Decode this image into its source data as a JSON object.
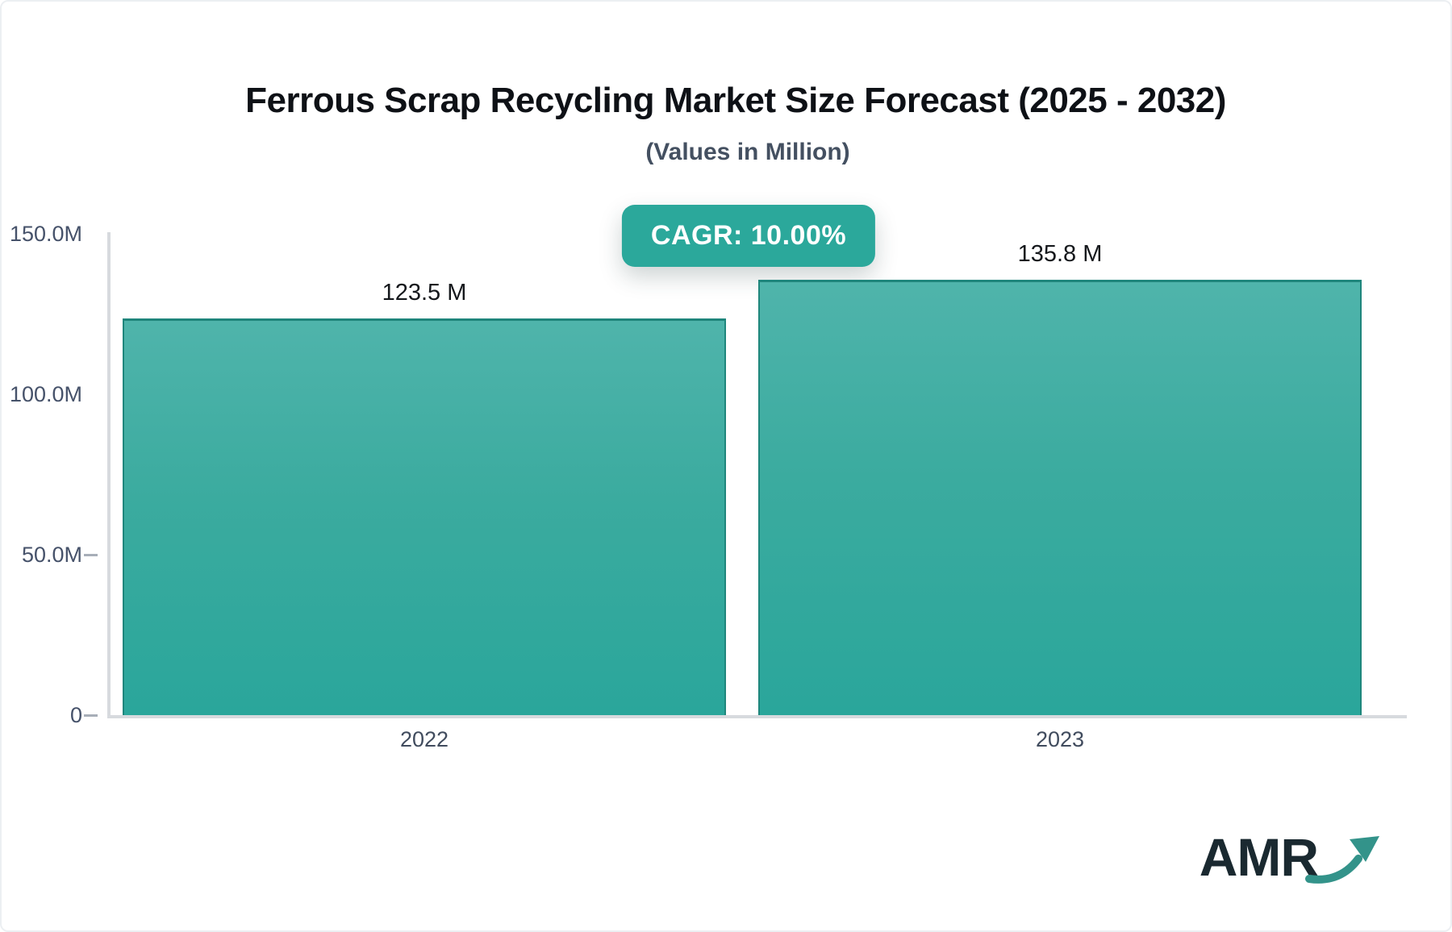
{
  "header": {
    "title": "Ferrous Scrap Recycling Market Size Forecast (2025 - 2032)",
    "subtitle": "(Values in Million)",
    "cagr_badge": "CAGR: 10.00%"
  },
  "logo": {
    "text": "AMR",
    "icon": "trend-arrow-icon"
  },
  "colors": {
    "accent_teal": "#2BA89B",
    "bar_gradient_top": "#4FB4AB",
    "bar_gradient_bottom": "#2AA69B",
    "bar_border": "#1F867C",
    "axis_line": "#D7DADE",
    "tick_mark": "#A7AEB8",
    "y_label_text": "#46526A",
    "x_label_text": "#414C5E",
    "value_label_text": "#15181C",
    "title_text": "#0E1116",
    "subtitle_text": "#445061",
    "badge_text": "#FFFFFF",
    "logo_text": "#1A2930",
    "logo_arrow": "#33938A"
  },
  "chart_data": {
    "type": "bar",
    "title": "Ferrous Scrap Recycling Market Size Forecast (2025 - 2032)",
    "subtitle": "(Values in Million)",
    "unit": "Million",
    "cagr_percent": "10.00%",
    "categories": [
      "2022",
      "2023"
    ],
    "values": [
      123.5,
      135.8
    ],
    "value_labels": [
      "123.5 M",
      "135.8 M"
    ],
    "xlabel": "",
    "ylabel": "",
    "ylim": [
      0,
      150
    ],
    "grid": false,
    "legend": "none",
    "yticks": [
      {
        "value": 150,
        "label": "150.0M",
        "tick": false
      },
      {
        "value": 100,
        "label": "100.0M",
        "tick": false
      },
      {
        "value": 50,
        "label": "50.0M",
        "tick": true
      },
      {
        "value": 0,
        "label": "0",
        "tick": true
      }
    ]
  }
}
